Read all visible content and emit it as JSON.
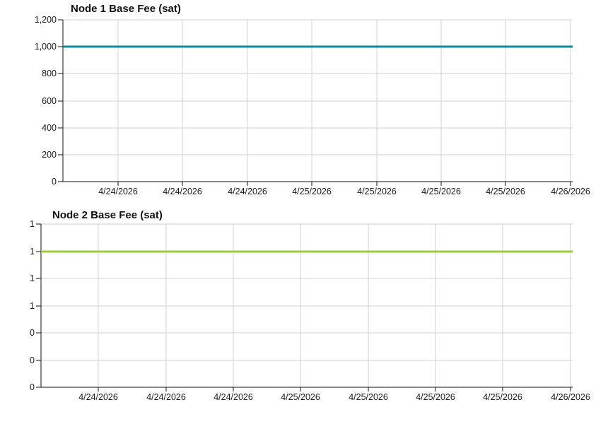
{
  "page": {
    "background_color": "#ffffff",
    "gridline_color": "#d2d2d2",
    "axis_color": "#111111",
    "text_color": "#1a1a1a"
  },
  "chart_data": [
    {
      "type": "line",
      "title": "Node 1 Base Fee (sat)",
      "xlabel": "",
      "ylabel": "",
      "ylim": [
        0,
        1200
      ],
      "grid": true,
      "legend": "none",
      "x_tick_labels": [
        "4/24/2026",
        "4/24/2026",
        "4/24/2026",
        "4/25/2026",
        "4/25/2026",
        "4/25/2026",
        "4/25/2026",
        "4/26/2026"
      ],
      "y_tick_values": [
        1200,
        1000,
        800,
        600,
        400,
        200,
        0
      ],
      "y_tick_labels": [
        "1,200",
        "1,000",
        "800",
        "600",
        "400",
        "200",
        "0"
      ],
      "series": [
        {
          "name": "Node 1 Base Fee (sat)",
          "color": "#12869a",
          "values": [
            1000,
            1000,
            1000,
            1000,
            1000,
            1000,
            1000,
            1000
          ]
        }
      ]
    },
    {
      "type": "line",
      "title": "Node 2 Base Fee (sat)",
      "xlabel": "",
      "ylabel": "",
      "ylim": [
        0,
        1.2
      ],
      "grid": true,
      "legend": "none",
      "x_tick_labels": [
        "4/24/2026",
        "4/24/2026",
        "4/24/2026",
        "4/25/2026",
        "4/25/2026",
        "4/25/2026",
        "4/25/2026",
        "4/26/2026"
      ],
      "y_tick_values": [
        1.2,
        1.0,
        0.8,
        0.6,
        0.4,
        0.2,
        0
      ],
      "y_tick_labels": [
        "1",
        "1",
        "1",
        "1",
        "0",
        "0",
        "0"
      ],
      "series": [
        {
          "name": "Node 2 Base Fee (sat)",
          "color": "#9ccb3b",
          "values": [
            1,
            1,
            1,
            1,
            1,
            1,
            1,
            1
          ]
        }
      ]
    }
  ]
}
